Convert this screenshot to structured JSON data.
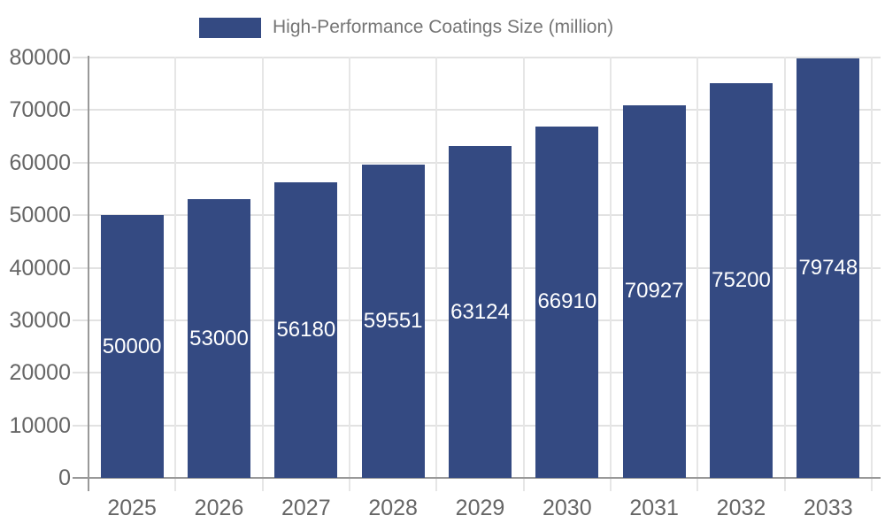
{
  "legend": {
    "label": "High-Performance Coatings Size (million)"
  },
  "colors": {
    "bar": "#344A82",
    "grid": "#e2e2e2",
    "grid_vertical": "#e6e6e6",
    "axis": "#999999",
    "tick_label": "#666666",
    "legend_text": "#757575",
    "bar_label": "#ffffff",
    "background": "#ffffff"
  },
  "chart_data": {
    "type": "bar",
    "title": "",
    "series_name": "High-Performance Coatings Size (million)",
    "categories": [
      "2025",
      "2026",
      "2027",
      "2028",
      "2029",
      "2030",
      "2031",
      "2032",
      "2033"
    ],
    "values": [
      50000,
      53000,
      56180,
      59551,
      63124,
      66910,
      70927,
      75200,
      79748
    ],
    "xlabel": "",
    "ylabel": "",
    "ylim": [
      0,
      80000
    ],
    "ytick_interval": 10000,
    "yticks": [
      0,
      10000,
      20000,
      30000,
      40000,
      50000,
      60000,
      70000,
      80000
    ],
    "grid": true,
    "legend_position": "top",
    "bar_label_position": "inside-center"
  }
}
